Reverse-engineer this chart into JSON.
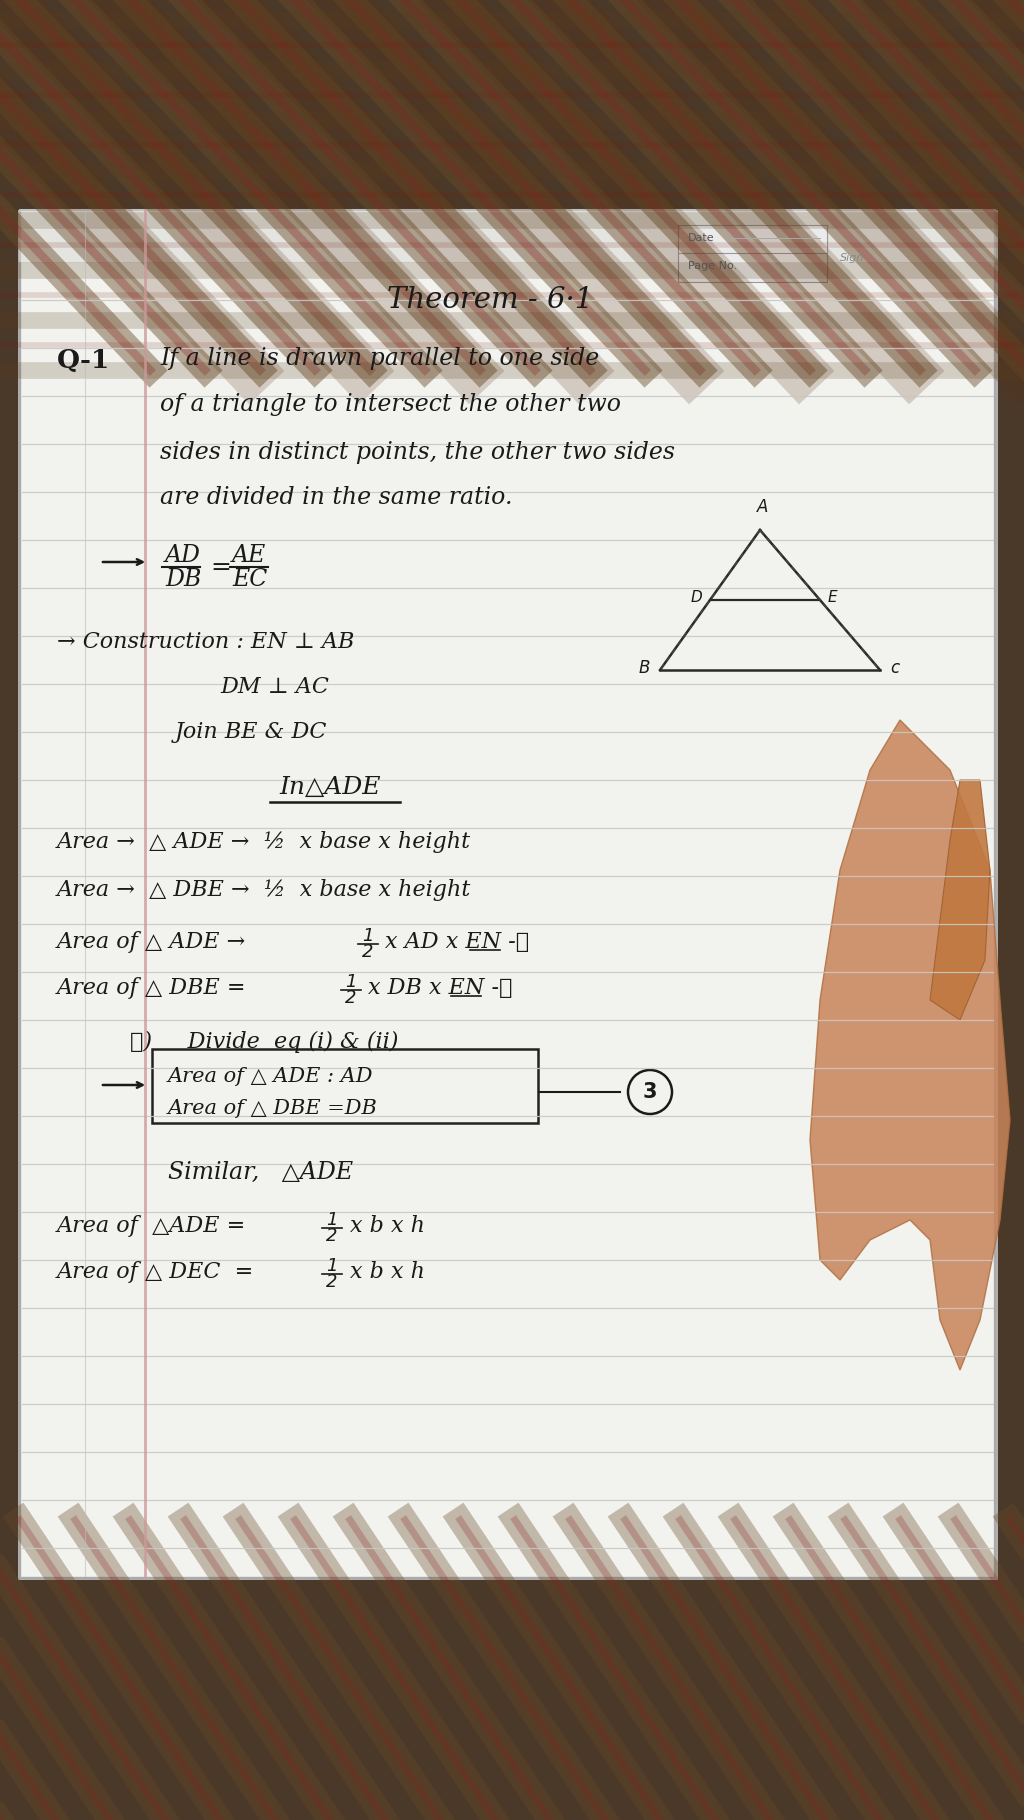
{
  "fabric_color": "#4a3828",
  "fabric_stripe1": "#6b4c2a",
  "fabric_stripe2": "#8b2020",
  "fabric_stripe3": "#3a3018",
  "page_bg": "#e8e8e4",
  "page_inner": "#f2f2ee",
  "line_color": "#c8c8c4",
  "margin_color": "#cc9999",
  "text_dark": "#1a1a1a",
  "text_mid": "#2a2a2a",
  "title": "Theorem - 6·1",
  "date_label": "Date",
  "page_label": "Page No.",
  "q_num": "Q-1",
  "q_line1": "If a line is drawn parallel to one side",
  "q_line2": "of a triangle to intersect the other two",
  "q_line3": "sides in distinct points, the other two sides",
  "q_line4": "are divided in the same ratio.",
  "ratio_top": "AD  =  AE",
  "ratio_bot": "DB       EC",
  "construction1": "→ Construction : EN ⊥ AB",
  "construction2": "DM ⊥ AC",
  "construction3": "Join BE & DC",
  "in_tri": "In△ADE",
  "area_line1": "Area →  △ ADE →  ½  x base x height",
  "area_line2": "Area →  △ DBE →  ½  x base x height",
  "area_line3": "Area of △ ADE → ½x AD x EN -①",
  "area_line4": "Area of △ DBE = ½x DB x EN -②",
  "divide_line1": "∴)     Divide  eq (i) & (ii)",
  "box_line1": "Area of △ ADE : AD",
  "box_line2": "Area of △ DBE =DB",
  "similar_line": "Similar,   △ADE",
  "final_line1": "Area of  △ADE = ½ x b x h",
  "final_line2": "Area of △ DEC  = ½ x b x h",
  "circle3": "3"
}
